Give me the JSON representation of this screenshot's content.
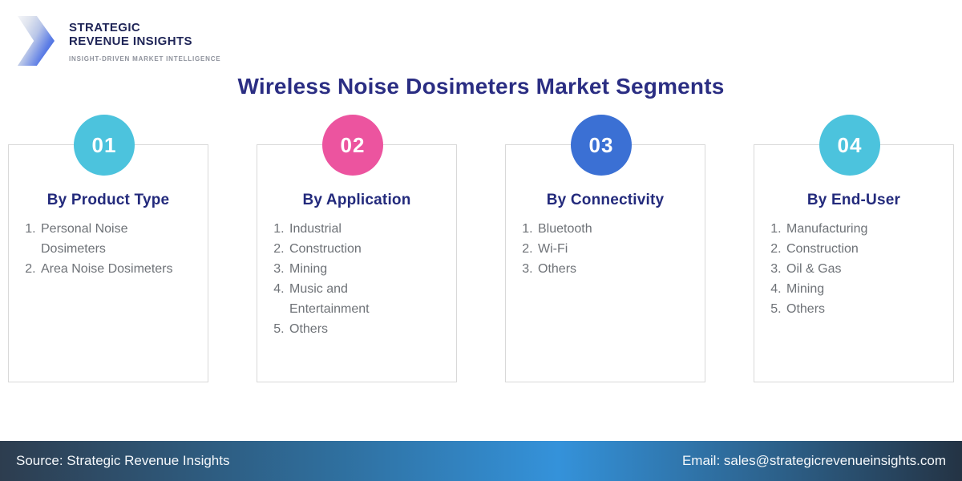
{
  "logo": {
    "line1": "STRATEGIC",
    "line2": "REVENUE INSIGHTS",
    "tagline": "INSIGHT-DRIVEN MARKET INTELLIGENCE"
  },
  "title": "Wireless Noise Dosimeters Market Segments",
  "colors": {
    "title_navy": "#2b2e83",
    "heading_navy": "#232a7c",
    "list_gray": "#6e7277",
    "badge_cyan": "#4cc3dd",
    "badge_pink": "#ec549f",
    "badge_blue": "#3b70d4",
    "footer_dark_left": "#2d3d4f",
    "footer_blue_mid": "#3492da",
    "footer_dark_right": "#243344"
  },
  "segments": [
    {
      "number": "01",
      "badge_color": "#4cc3dd",
      "heading": "By Product Type",
      "items": [
        "Personal Noise Dosimeters",
        "Area Noise Dosimeters"
      ]
    },
    {
      "number": "02",
      "badge_color": "#ec549f",
      "heading": "By Application",
      "items": [
        "Industrial",
        "Construction",
        "Mining",
        "Music and Entertainment",
        "Others"
      ]
    },
    {
      "number": "03",
      "badge_color": "#3b70d4",
      "heading": "By Connectivity",
      "items": [
        "Bluetooth",
        "Wi-Fi",
        "Others"
      ]
    },
    {
      "number": "04",
      "badge_color": "#4cc3dd",
      "heading": "By End-User",
      "items": [
        "Manufacturing",
        "Construction",
        "Oil & Gas",
        "Mining",
        "Others"
      ]
    }
  ],
  "footer": {
    "source": "Source: Strategic Revenue Insights",
    "email": "Email: sales@strategicrevenueinsights.com"
  }
}
